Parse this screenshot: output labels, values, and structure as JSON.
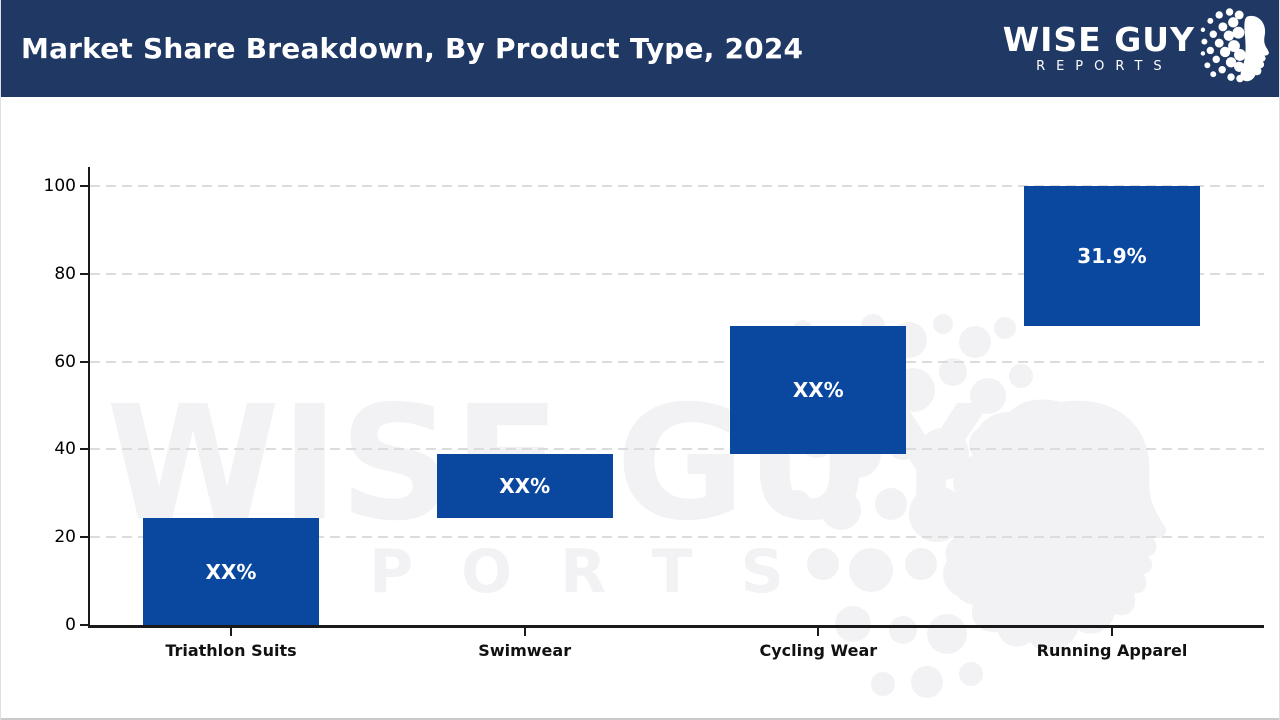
{
  "header": {
    "title": "Market Share Breakdown, By Product Type, 2024",
    "logo": {
      "line1": "WISE GUY",
      "line2": "REPORTS"
    }
  },
  "watermark": {
    "line1": "WISE GUY",
    "line2": "REPORTS"
  },
  "colors": {
    "header_bg": "#1f3864",
    "bar": "#0a479e",
    "bar_label": "#ffffff",
    "grid": "#dcdcdc",
    "axis": "#1a1a1a",
    "watermark": "#f2f2f5"
  },
  "chart_data": {
    "type": "waterfall",
    "title": "Market Share Breakdown, By Product Type, 2024",
    "categories": [
      "Triathlon Suits",
      "Swimwear",
      "Cycling Wear",
      "Running Apparel"
    ],
    "segments": [
      {
        "category": "Triathlon Suits",
        "start": 0,
        "end": 24.3,
        "value_label": "XX%"
      },
      {
        "category": "Swimwear",
        "start": 24.3,
        "end": 38.9,
        "value_label": "XX%"
      },
      {
        "category": "Cycling Wear",
        "start": 38.9,
        "end": 68.1,
        "value_label": "XX%"
      },
      {
        "category": "Running Apparel",
        "start": 68.1,
        "end": 100,
        "value_label": "31.9%"
      }
    ],
    "y_ticks": [
      0,
      20,
      40,
      60,
      80,
      100
    ],
    "ylim": [
      0,
      104
    ],
    "xlabel": "",
    "ylabel": "",
    "grid": "horizontal-dashed",
    "legend": "none"
  }
}
